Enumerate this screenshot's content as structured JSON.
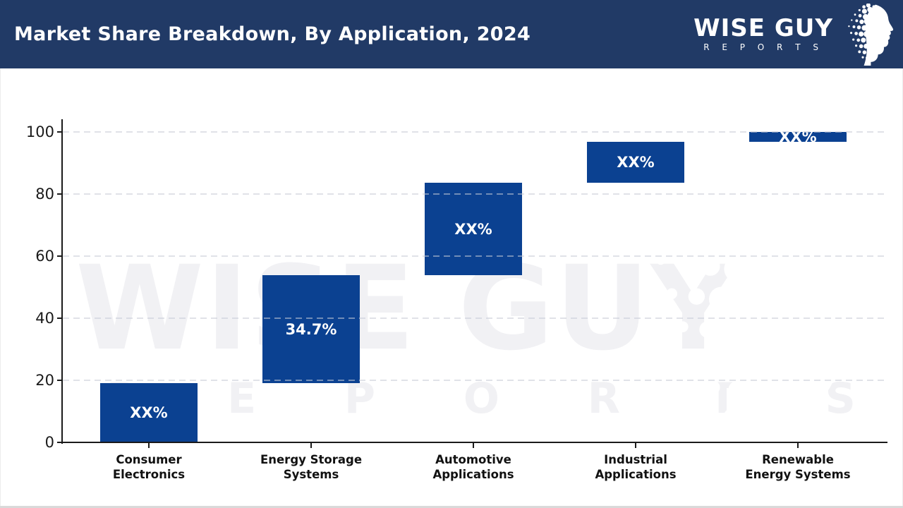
{
  "header": {
    "title": "Market Share Breakdown, By Application, 2024",
    "logo": {
      "line1": "WISE GUY",
      "line2": "R E P O R T S"
    }
  },
  "watermark": {
    "line1": "WISE GUY",
    "line2": "R E P O R T S"
  },
  "colors": {
    "header_bg": "#213a66",
    "bar": "#0b4191",
    "watermark": "#f1f1f4",
    "grid": "#dcdcdc",
    "axis": "#1a1a1a"
  },
  "chart_data": {
    "type": "bar",
    "subtype": "waterfall",
    "title": "Market Share Breakdown, By Application, 2024",
    "xlabel": "",
    "ylabel": "",
    "ylim": [
      0,
      104
    ],
    "yticks": [
      0,
      20,
      40,
      60,
      80,
      100
    ],
    "grid": "dashed-horizontal",
    "legend": "none",
    "bar_color": "#0b4191",
    "categories": [
      "Consumer Electronics",
      "Energy Storage Systems",
      "Automotive Applications",
      "Industrial Applications",
      "Renewable Energy Systems"
    ],
    "bars": [
      {
        "category": "Consumer Electronics",
        "base": 0,
        "top": 19.1,
        "height": 19.1,
        "label": "XX%"
      },
      {
        "category": "Energy Storage Systems",
        "base": 19.1,
        "top": 53.8,
        "height": 34.7,
        "label": "34.7%"
      },
      {
        "category": "Automotive Applications",
        "base": 53.8,
        "top": 83.6,
        "height": 29.8,
        "label": "XX%"
      },
      {
        "category": "Industrial Applications",
        "base": 83.6,
        "top": 96.8,
        "height": 13.2,
        "label": "XX%"
      },
      {
        "category": "Renewable Energy Systems",
        "base": 96.8,
        "top": 100,
        "height": 3.2,
        "label": "XX%"
      }
    ]
  }
}
